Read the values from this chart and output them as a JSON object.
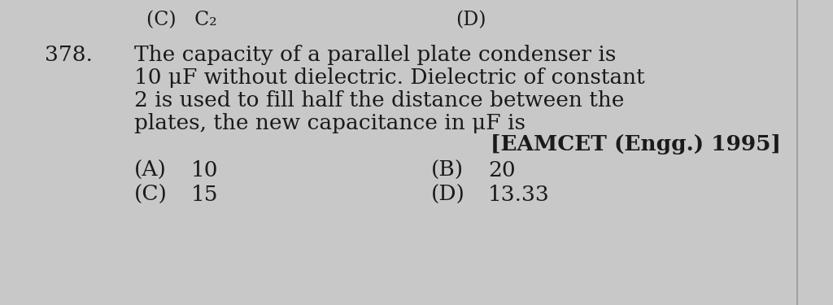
{
  "background_color": "#c8c8c8",
  "text_color": "#1a1a1a",
  "question_number": "378.",
  "question_text_line1": "The capacity of a parallel plate condenser is",
  "question_text_line2": "10 μF without dielectric. Dielectric of constant",
  "question_text_line3": "2 is used to fill half the distance between the",
  "question_text_line4": "plates, the new capacitance in μF is",
  "source_text": "[EAMCET (Engg.) 1995]",
  "opt_A_label": "(A)",
  "opt_A_value": "10",
  "opt_B_label": "(B)",
  "opt_B_value": "20",
  "opt_C_label": "(C)",
  "opt_C_value": "15",
  "opt_D_label": "(D)",
  "opt_D_value": "13.33",
  "top_left_text": "(C)   C₂",
  "top_right_text": "(D)",
  "right_border_color": "#999999",
  "font_size_main": 19,
  "font_size_top": 17
}
